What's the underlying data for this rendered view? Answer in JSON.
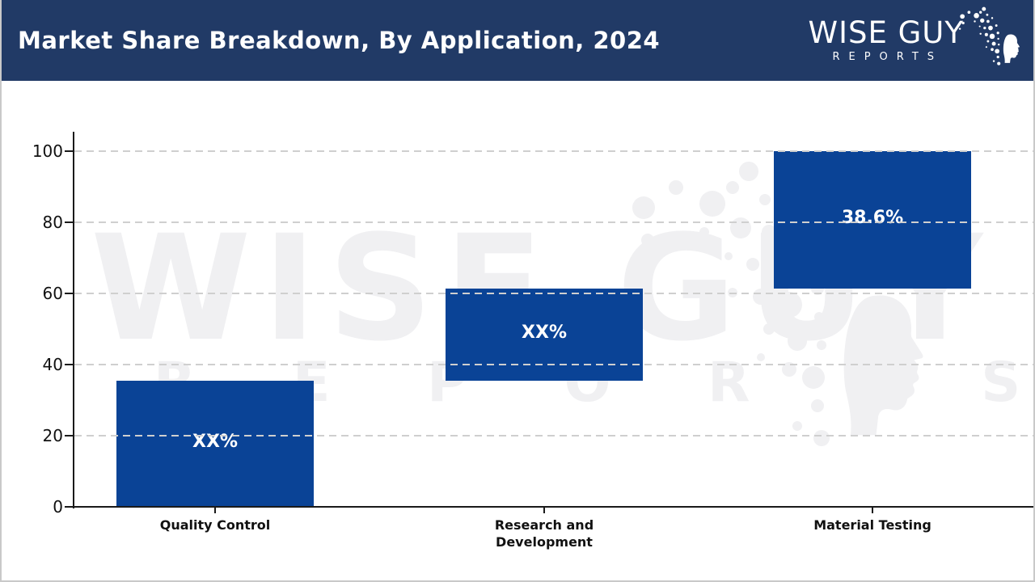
{
  "header": {
    "title": "Market Share Breakdown, By Application, 2024",
    "logo": {
      "line1": "WISE GUY",
      "line2": "REPORTS"
    }
  },
  "watermark": {
    "line1": "WISE GUY",
    "line2": "R E P O R T S"
  },
  "chart_data": {
    "type": "bar",
    "subtype": "stacked-range-waterfall",
    "title": "Market Share Breakdown, By Application, 2024",
    "categories": [
      "Quality Control",
      "Research and Development",
      "Material Testing"
    ],
    "segments": [
      {
        "category": "Quality Control",
        "start": 0,
        "end": 35.4,
        "label": "XX%"
      },
      {
        "category": "Research and Development",
        "start": 35.4,
        "end": 61.4,
        "label": "XX%"
      },
      {
        "category": "Material Testing",
        "start": 61.4,
        "end": 100,
        "label": "38.6%"
      }
    ],
    "xlabel": "",
    "ylabel": "",
    "ylim": [
      0,
      100
    ],
    "yticks": [
      0,
      20,
      40,
      60,
      80,
      100
    ],
    "grid": true,
    "legend": false,
    "colors": {
      "bar": "#0a4396",
      "axis": "#1a1a1a",
      "grid": "#cfcfcf",
      "header_bg": "#213a66",
      "bar_label_text": "#ffffff",
      "watermark": "#f0f0f2"
    }
  }
}
